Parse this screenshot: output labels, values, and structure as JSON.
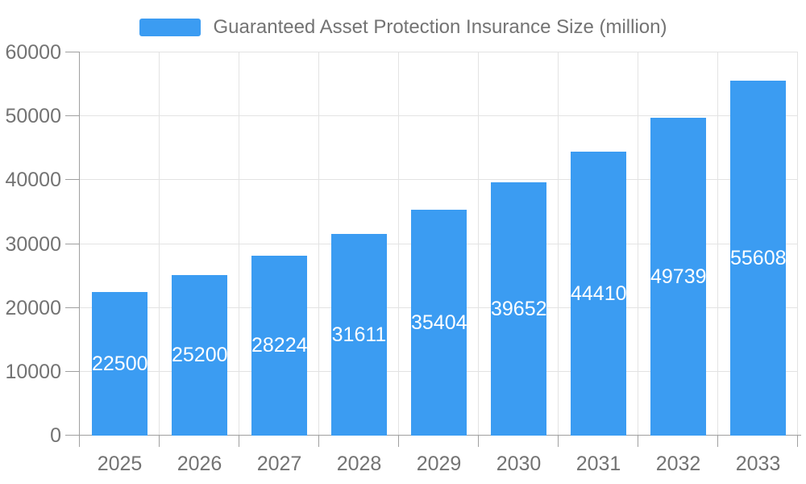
{
  "legend": {
    "label": "Guaranteed Asset Protection Insurance Size (million)"
  },
  "chart_data": {
    "type": "bar",
    "title": "Guaranteed Asset Protection Insurance Size (million)",
    "categories": [
      "2025",
      "2026",
      "2027",
      "2028",
      "2029",
      "2030",
      "2031",
      "2032",
      "2033"
    ],
    "series": [
      {
        "name": "Guaranteed Asset Protection Insurance Size (million)",
        "values": [
          22500,
          25200,
          28224,
          31611,
          35404,
          39652,
          44410,
          49739,
          55608
        ]
      }
    ],
    "value_labels_shown": true,
    "value_label_position": "inside-center",
    "xlabel": "",
    "ylabel": "",
    "ylim": [
      0,
      60000
    ],
    "yticks": [
      0,
      10000,
      20000,
      30000,
      40000,
      50000,
      60000
    ],
    "grid": true,
    "legend_position": "top-center",
    "colors": {
      "bar": "#3b9cf2",
      "grid": "#e3e3e3",
      "axis": "#a0a0a0",
      "tick_label": "#737373",
      "value_label": "#ffffff",
      "background": "#ffffff"
    }
  }
}
